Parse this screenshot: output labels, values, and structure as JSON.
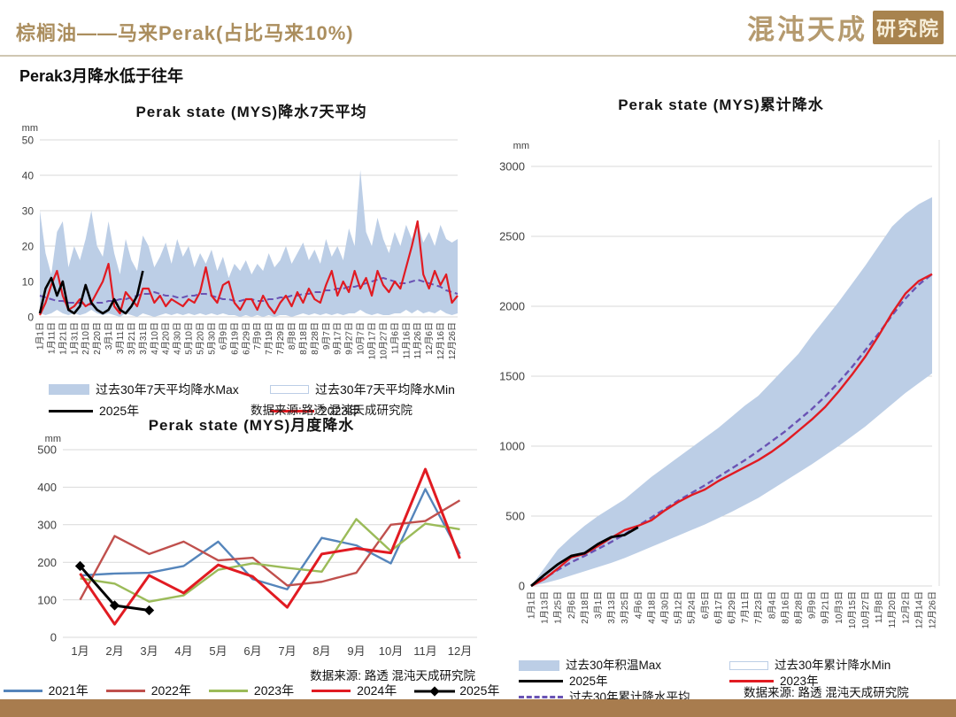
{
  "header": {
    "title": "棕榈油——马来Perak(占比马来10%)",
    "logo_text": "混沌天成",
    "logo_badge": "研究院"
  },
  "subtitle": "Perak3月降水低于往年",
  "colors": {
    "header_title": "#ab8e5e",
    "logo_brown": "#a8834e",
    "footer_bar": "#a87c4e",
    "divider": "#cfc7b2",
    "band_blue": "#bccee6",
    "average_purple": "#6a53b4",
    "red": "#e11b22",
    "black": "#000000"
  },
  "chart_data": [
    {
      "id": "seven_day",
      "type": "line",
      "title": "Perak state (MYS)降水7天平均",
      "unit": "mm",
      "ylim": [
        0,
        50
      ],
      "yticks": [
        0,
        10,
        20,
        30,
        40,
        50
      ],
      "grid": true,
      "legend_position": "bottom",
      "x_labels": [
        "1月1日",
        "1月11日",
        "1月21日",
        "1月31日",
        "2月10日",
        "2月20日",
        "3月1日",
        "3月11日",
        "3月21日",
        "3月31日",
        "4月10日",
        "4月20日",
        "4月30日",
        "5月10日",
        "5月20日",
        "5月30日",
        "6月9日",
        "6月19日",
        "6月29日",
        "7月9日",
        "7月19日",
        "7月29日",
        "8月8日",
        "8月18日",
        "8月28日",
        "9月7日",
        "9月17日",
        "9月27日",
        "10月7日",
        "10月17日",
        "10月27日",
        "11月6日",
        "11月16日",
        "11月26日",
        "12月6日",
        "12月16日",
        "12月26日"
      ],
      "point_step_days": 5,
      "series": [
        {
          "name": "过去30年7天平均降水Max-Min区间",
          "type": "band",
          "color": "#bccee6",
          "max": [
            30,
            18,
            12,
            24,
            27,
            14,
            20,
            16,
            22,
            30,
            20,
            17,
            27,
            18,
            12,
            22,
            16,
            13,
            23,
            20,
            14,
            17,
            21,
            15,
            22,
            17,
            20,
            14,
            18,
            15,
            19,
            13,
            17,
            11,
            15,
            13,
            16,
            12,
            15,
            13,
            18,
            14,
            16,
            20,
            15,
            18,
            21,
            16,
            19,
            15,
            22,
            17,
            20,
            16,
            25,
            20,
            41.5,
            24,
            20,
            28,
            22,
            18,
            24,
            20,
            26,
            22,
            27,
            21,
            24,
            20,
            26,
            22,
            21,
            22
          ],
          "min": [
            1,
            0.5,
            1,
            2,
            1,
            0.5,
            1,
            0.5,
            1,
            2,
            1,
            0.5,
            1,
            0.5,
            0,
            1,
            0.5,
            0,
            1,
            0.5,
            0,
            0.5,
            1,
            0.5,
            1,
            0.5,
            1,
            0.5,
            1,
            0.5,
            1,
            0.5,
            1,
            0.5,
            0.5,
            0,
            0.5,
            0,
            0.5,
            0,
            0.5,
            0,
            0.5,
            0.5,
            0,
            0.5,
            1,
            0.5,
            1,
            0.5,
            1,
            0.5,
            1,
            0.5,
            1,
            1,
            2,
            1,
            0.5,
            1,
            0.5,
            0.5,
            1,
            1,
            2,
            1,
            2,
            1,
            1.5,
            1,
            2,
            1,
            0.5,
            1
          ]
        },
        {
          "name": "过去30年7天平均",
          "type": "line",
          "dash": true,
          "color": "#6a53b4",
          "width": 2,
          "values": [
            6,
            5.5,
            5,
            4.5,
            4.5,
            4,
            4,
            4,
            3.5,
            3.5,
            4,
            4,
            4.5,
            4.5,
            5,
            5,
            5.5,
            6,
            6.5,
            6.5,
            7,
            6.5,
            6,
            6,
            5.5,
            5.5,
            6,
            6,
            6.5,
            6.5,
            6,
            5.5,
            5,
            5,
            4.5,
            4.5,
            5,
            5,
            4.5,
            4.5,
            5,
            5,
            5.5,
            5.5,
            6,
            6,
            6.5,
            6.5,
            7,
            7,
            7.5,
            7.5,
            8,
            8,
            8.5,
            8.5,
            9,
            9.5,
            10,
            10.5,
            11,
            10.5,
            10,
            9.5,
            9.5,
            10,
            10.5,
            10,
            9.5,
            9,
            8.5,
            7.5,
            7,
            6.5
          ]
        },
        {
          "name": "2023年",
          "type": "line",
          "color": "#e11b22",
          "width": 2.2,
          "values": [
            0.5,
            4,
            9,
            13,
            6,
            2,
            3,
            5,
            3,
            4,
            7,
            10,
            15,
            3,
            1,
            7,
            5,
            3,
            8,
            8,
            4,
            6,
            3,
            5,
            4,
            3,
            5,
            4,
            7,
            14,
            6,
            4,
            9,
            10,
            4,
            2,
            5,
            5,
            2,
            6,
            3,
            1,
            4,
            6,
            3,
            7,
            4,
            8,
            5,
            4,
            9,
            13,
            6,
            10,
            7,
            13,
            8,
            11,
            6,
            13,
            9,
            7,
            10,
            8,
            14,
            20,
            27,
            12,
            8,
            13,
            9,
            12,
            4,
            6
          ]
        },
        {
          "name": "2025年",
          "type": "line",
          "color": "#000000",
          "width": 2.6,
          "values": [
            1,
            8,
            11,
            6,
            10,
            2,
            1,
            3,
            9,
            4,
            2,
            1,
            2,
            5,
            2,
            1,
            3,
            6,
            13
          ]
        }
      ],
      "legend": [
        {
          "swatch": "area",
          "color": "#bccee6",
          "label": "过去30年7天平均降水Max"
        },
        {
          "swatch": "area-outline",
          "color": "#bccee6",
          "label": "过去30年7天平均降水Min"
        },
        {
          "swatch": "line",
          "color": "#000000",
          "label": "2025年"
        },
        {
          "swatch": "line",
          "color": "#e11b22",
          "label": "2023年"
        }
      ],
      "source": "数据来源:路透 混沌天成研究院"
    },
    {
      "id": "monthly",
      "type": "line",
      "title": "Perak state (MYS)月度降水",
      "unit": "mm",
      "ylim": [
        0,
        500
      ],
      "yticks": [
        0,
        100,
        200,
        300,
        400,
        500
      ],
      "grid": true,
      "legend_position": "bottom",
      "x_labels": [
        "1月",
        "2月",
        "3月",
        "4月",
        "5月",
        "6月",
        "7月",
        "8月",
        "9月",
        "10月",
        "11月",
        "12月"
      ],
      "series": [
        {
          "name": "2021年",
          "type": "line",
          "color": "#5585bb",
          "width": 2.4,
          "values": [
            165,
            170,
            172,
            190,
            255,
            155,
            128,
            265,
            245,
            197,
            395,
            222
          ]
        },
        {
          "name": "2022年",
          "type": "line",
          "color": "#c0504d",
          "width": 2.4,
          "values": [
            100,
            270,
            222,
            255,
            205,
            212,
            138,
            148,
            172,
            300,
            310,
            365
          ]
        },
        {
          "name": "2023年",
          "type": "line",
          "color": "#9bbb59",
          "width": 2.4,
          "values": [
            157,
            143,
            95,
            112,
            180,
            197,
            185,
            175,
            315,
            230,
            303,
            288
          ]
        },
        {
          "name": "2024年",
          "type": "line",
          "color": "#e11b22",
          "width": 3,
          "values": [
            170,
            35,
            165,
            118,
            193,
            162,
            80,
            222,
            237,
            225,
            448,
            210
          ]
        },
        {
          "name": "2025年",
          "type": "line",
          "color": "#000000",
          "width": 3,
          "marker": "diamond",
          "values": [
            190,
            85,
            72
          ]
        }
      ],
      "legend": [
        {
          "swatch": "line",
          "color": "#5585bb",
          "label": "2021年"
        },
        {
          "swatch": "line",
          "color": "#c0504d",
          "label": "2022年"
        },
        {
          "swatch": "line",
          "color": "#9bbb59",
          "label": "2023年"
        },
        {
          "swatch": "line",
          "color": "#e11b22",
          "label": "2024年"
        },
        {
          "swatch": "line-diamond",
          "color": "#000000",
          "label": "2025年"
        }
      ],
      "source": "数据来源: 路透  混沌天成研究院"
    },
    {
      "id": "cumulative",
      "type": "line",
      "title": "Perak state (MYS)累计降水",
      "unit": "mm",
      "ylim": [
        0,
        3000
      ],
      "yticks": [
        0,
        500,
        1000,
        1500,
        2000,
        2500,
        3000
      ],
      "grid": true,
      "legend_position": "bottom",
      "x_labels": [
        "1月1日",
        "1月13日",
        "1月25日",
        "2月6日",
        "2月18日",
        "3月1日",
        "3月13日",
        "3月25日",
        "4月6日",
        "4月18日",
        "4月30日",
        "5月12日",
        "5月24日",
        "6月5日",
        "6月17日",
        "6月29日",
        "7月11日",
        "7月23日",
        "8月4日",
        "8月16日",
        "8月28日",
        "9月9日",
        "9月21日",
        "10月3日",
        "10月15日",
        "10月27日",
        "11月8日",
        "11月20日",
        "12月2日",
        "12月14日",
        "12月26日"
      ],
      "series": [
        {
          "name": "过去30年累计降水Max-Min区间",
          "type": "band",
          "color": "#bccee6",
          "max": [
            0,
            130,
            260,
            350,
            430,
            500,
            560,
            620,
            700,
            780,
            850,
            920,
            990,
            1060,
            1130,
            1210,
            1290,
            1360,
            1460,
            1560,
            1660,
            1790,
            1910,
            2030,
            2160,
            2290,
            2430,
            2570,
            2660,
            2730,
            2780
          ],
          "min": [
            0,
            20,
            45,
            75,
            105,
            135,
            165,
            200,
            240,
            280,
            320,
            360,
            400,
            440,
            485,
            530,
            580,
            630,
            690,
            750,
            810,
            870,
            935,
            1000,
            1070,
            1140,
            1220,
            1300,
            1380,
            1450,
            1520
          ]
        },
        {
          "name": "过去30年累计降水平均",
          "type": "line",
          "dash": true,
          "color": "#6a53b4",
          "width": 2.4,
          "values": [
            0,
            55,
            115,
            170,
            215,
            265,
            315,
            370,
            430,
            490,
            550,
            610,
            665,
            720,
            780,
            840,
            900,
            965,
            1035,
            1105,
            1185,
            1265,
            1355,
            1455,
            1565,
            1685,
            1805,
            1935,
            2055,
            2155,
            2230
          ]
        },
        {
          "name": "2023年",
          "type": "line",
          "color": "#e11b22",
          "width": 2.4,
          "values": [
            0,
            50,
            125,
            205,
            230,
            285,
            345,
            400,
            430,
            470,
            540,
            600,
            650,
            690,
            750,
            800,
            850,
            900,
            960,
            1030,
            1110,
            1190,
            1280,
            1390,
            1510,
            1640,
            1790,
            1950,
            2090,
            2180,
            2230
          ]
        },
        {
          "name": "2025年",
          "type": "line",
          "color": "#000000",
          "width": 2.8,
          "values": [
            0,
            80,
            155,
            215,
            235,
            300,
            350,
            365,
            420
          ]
        }
      ],
      "legend": [
        {
          "swatch": "area",
          "color": "#bccee6",
          "label": "过去30年积温Max"
        },
        {
          "swatch": "area-outline",
          "color": "#bccee6",
          "label": "过去30年累计降水Min"
        },
        {
          "swatch": "line",
          "color": "#000000",
          "label": "2025年"
        },
        {
          "swatch": "line",
          "color": "#e11b22",
          "label": "2023年"
        },
        {
          "swatch": "line-dash",
          "color": "#6a53b4",
          "label": "过去30年累计降水平均"
        },
        {
          "text": "数据来源: 路透  混沌天成研究院"
        }
      ]
    }
  ]
}
